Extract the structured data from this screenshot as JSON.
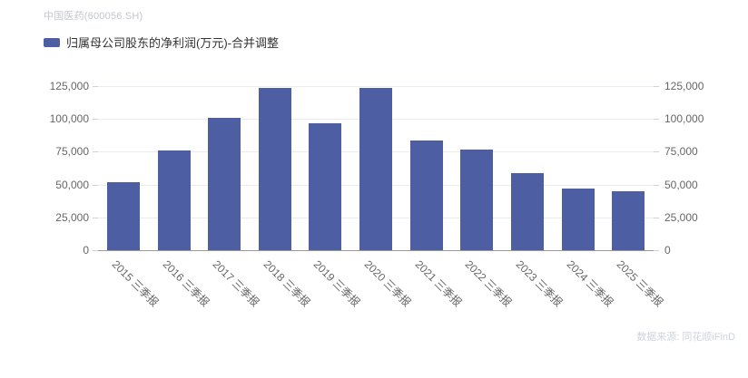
{
  "header": {
    "title": "中国医药(600056.SH)"
  },
  "legend": {
    "label": "归属母公司股东的净利润(万元)-合并调整",
    "swatch_color": "#4d5ea3"
  },
  "footer": {
    "source": "数据来源: 同花顺iFinD"
  },
  "colors": {
    "bar": "#4d5ea3",
    "grid": "#e9ebf2",
    "axis_line": "#999999",
    "axis_label": "#666666",
    "title_text": "#c3c6cf",
    "source_text": "#ced3de"
  },
  "chart_data": {
    "type": "bar",
    "title": "中国医药(600056.SH)",
    "series_name": "归属母公司股东的净利润(万元)-合并调整",
    "categories": [
      "2015 三季报",
      "2016 三季报",
      "2017 三季报",
      "2018 三季报",
      "2019 三季报",
      "2020 三季报",
      "2021 三季报",
      "2022 三季报",
      "2023 三季报",
      "2024 三季报",
      "2025 三季报"
    ],
    "values": [
      51500,
      76300,
      100700,
      123800,
      96800,
      123900,
      83700,
      77000,
      58800,
      47100,
      44600
    ],
    "xlabel": "",
    "ylabel": "万元",
    "ylim": [
      0,
      125000
    ],
    "ytick_values": [
      0,
      25000,
      50000,
      75000,
      100000,
      125000
    ],
    "ytick_labels": [
      "0",
      "25,000",
      "50,000",
      "75,000",
      "100,000",
      "125,000"
    ],
    "grid": true,
    "bar_color": "#4d5ea3",
    "legend_position": "top-left",
    "dual_y_axis": true,
    "x_label_rotation_deg": 45
  }
}
